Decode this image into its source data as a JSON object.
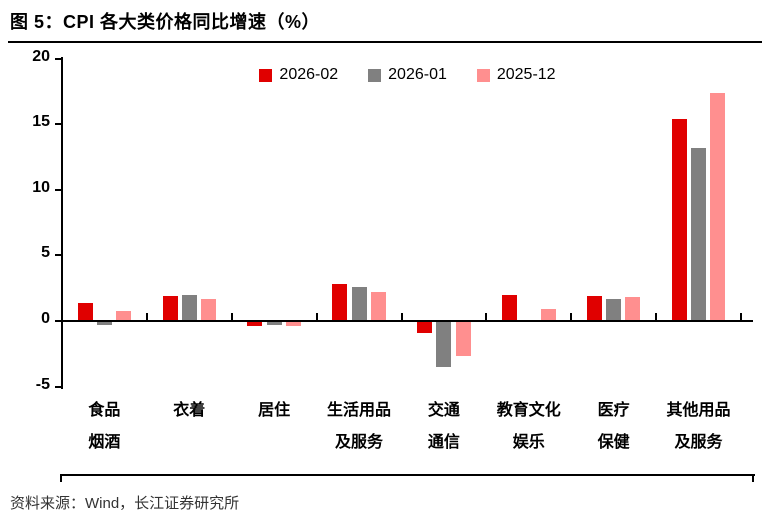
{
  "title": "图 5：CPI 各大类价格同比增速（%）",
  "source": "资料来源：Wind，长江证券研究所",
  "colors": {
    "series_2026_02": "#e00000",
    "series_2026_01": "#808080",
    "series_2025_12": "#ff8f8f",
    "axis": "#000000",
    "text": "#000000"
  },
  "chart_data": {
    "type": "bar",
    "title": "CPI 各大类价格同比增速（%）",
    "categories": [
      "食品烟酒",
      "衣着",
      "居住",
      "生活用品及服务",
      "交通通信",
      "教育文化娱乐",
      "医疗保健",
      "其他用品及服务"
    ],
    "category_lines": [
      [
        "食品",
        "烟酒"
      ],
      [
        "衣着",
        ""
      ],
      [
        "居住",
        ""
      ],
      [
        "生活用品",
        "及服务"
      ],
      [
        "交通",
        "通信"
      ],
      [
        "教育文化",
        "娱乐"
      ],
      [
        "医疗",
        "保健"
      ],
      [
        "其他用品",
        "及服务"
      ]
    ],
    "series": [
      {
        "name": "2026-02",
        "color": "#e00000",
        "values": [
          1.4,
          1.9,
          -0.3,
          2.8,
          -0.8,
          2.0,
          1.9,
          15.4
        ]
      },
      {
        "name": "2026-01",
        "color": "#808080",
        "values": [
          -0.2,
          2.0,
          -0.2,
          2.6,
          -3.4,
          0.0,
          1.7,
          13.2
        ]
      },
      {
        "name": "2025-12",
        "color": "#ff8f8f",
        "values": [
          0.8,
          1.7,
          -0.3,
          2.2,
          -2.6,
          0.9,
          1.8,
          17.4
        ]
      }
    ],
    "ylim": [
      -5,
      20
    ],
    "yticks": [
      20,
      15,
      10,
      5,
      0,
      -5
    ],
    "xlabel": "",
    "ylabel": "",
    "grid": false,
    "legend_position": "top-center"
  }
}
